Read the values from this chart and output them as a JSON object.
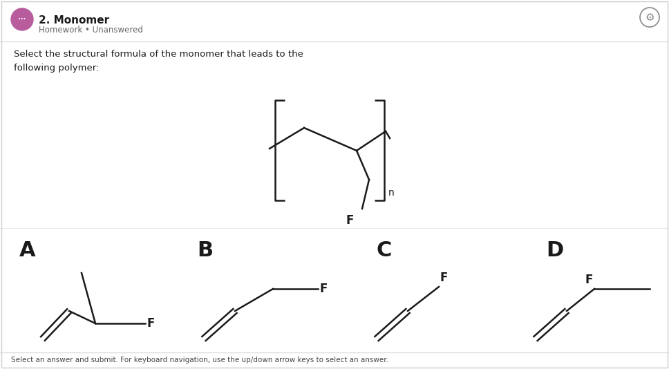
{
  "bg_color": "#ffffff",
  "title": "2. Monomer",
  "subtitle": "Homework • Unanswered",
  "question": "Select the structural formula of the monomer that leads to the\nfollowing polymer:",
  "footer": "Select an answer and submit. For keyboard navigation, use the up/down arrow keys to select an answer.",
  "options": [
    "A",
    "B",
    "C",
    "D"
  ],
  "text_color": "#1a1a1a",
  "line_color": "#1a1a1a",
  "line_width": 1.8,
  "icon_color": "#b85c9e",
  "gear_color": "#888888",
  "sep_color": "#dddddd"
}
